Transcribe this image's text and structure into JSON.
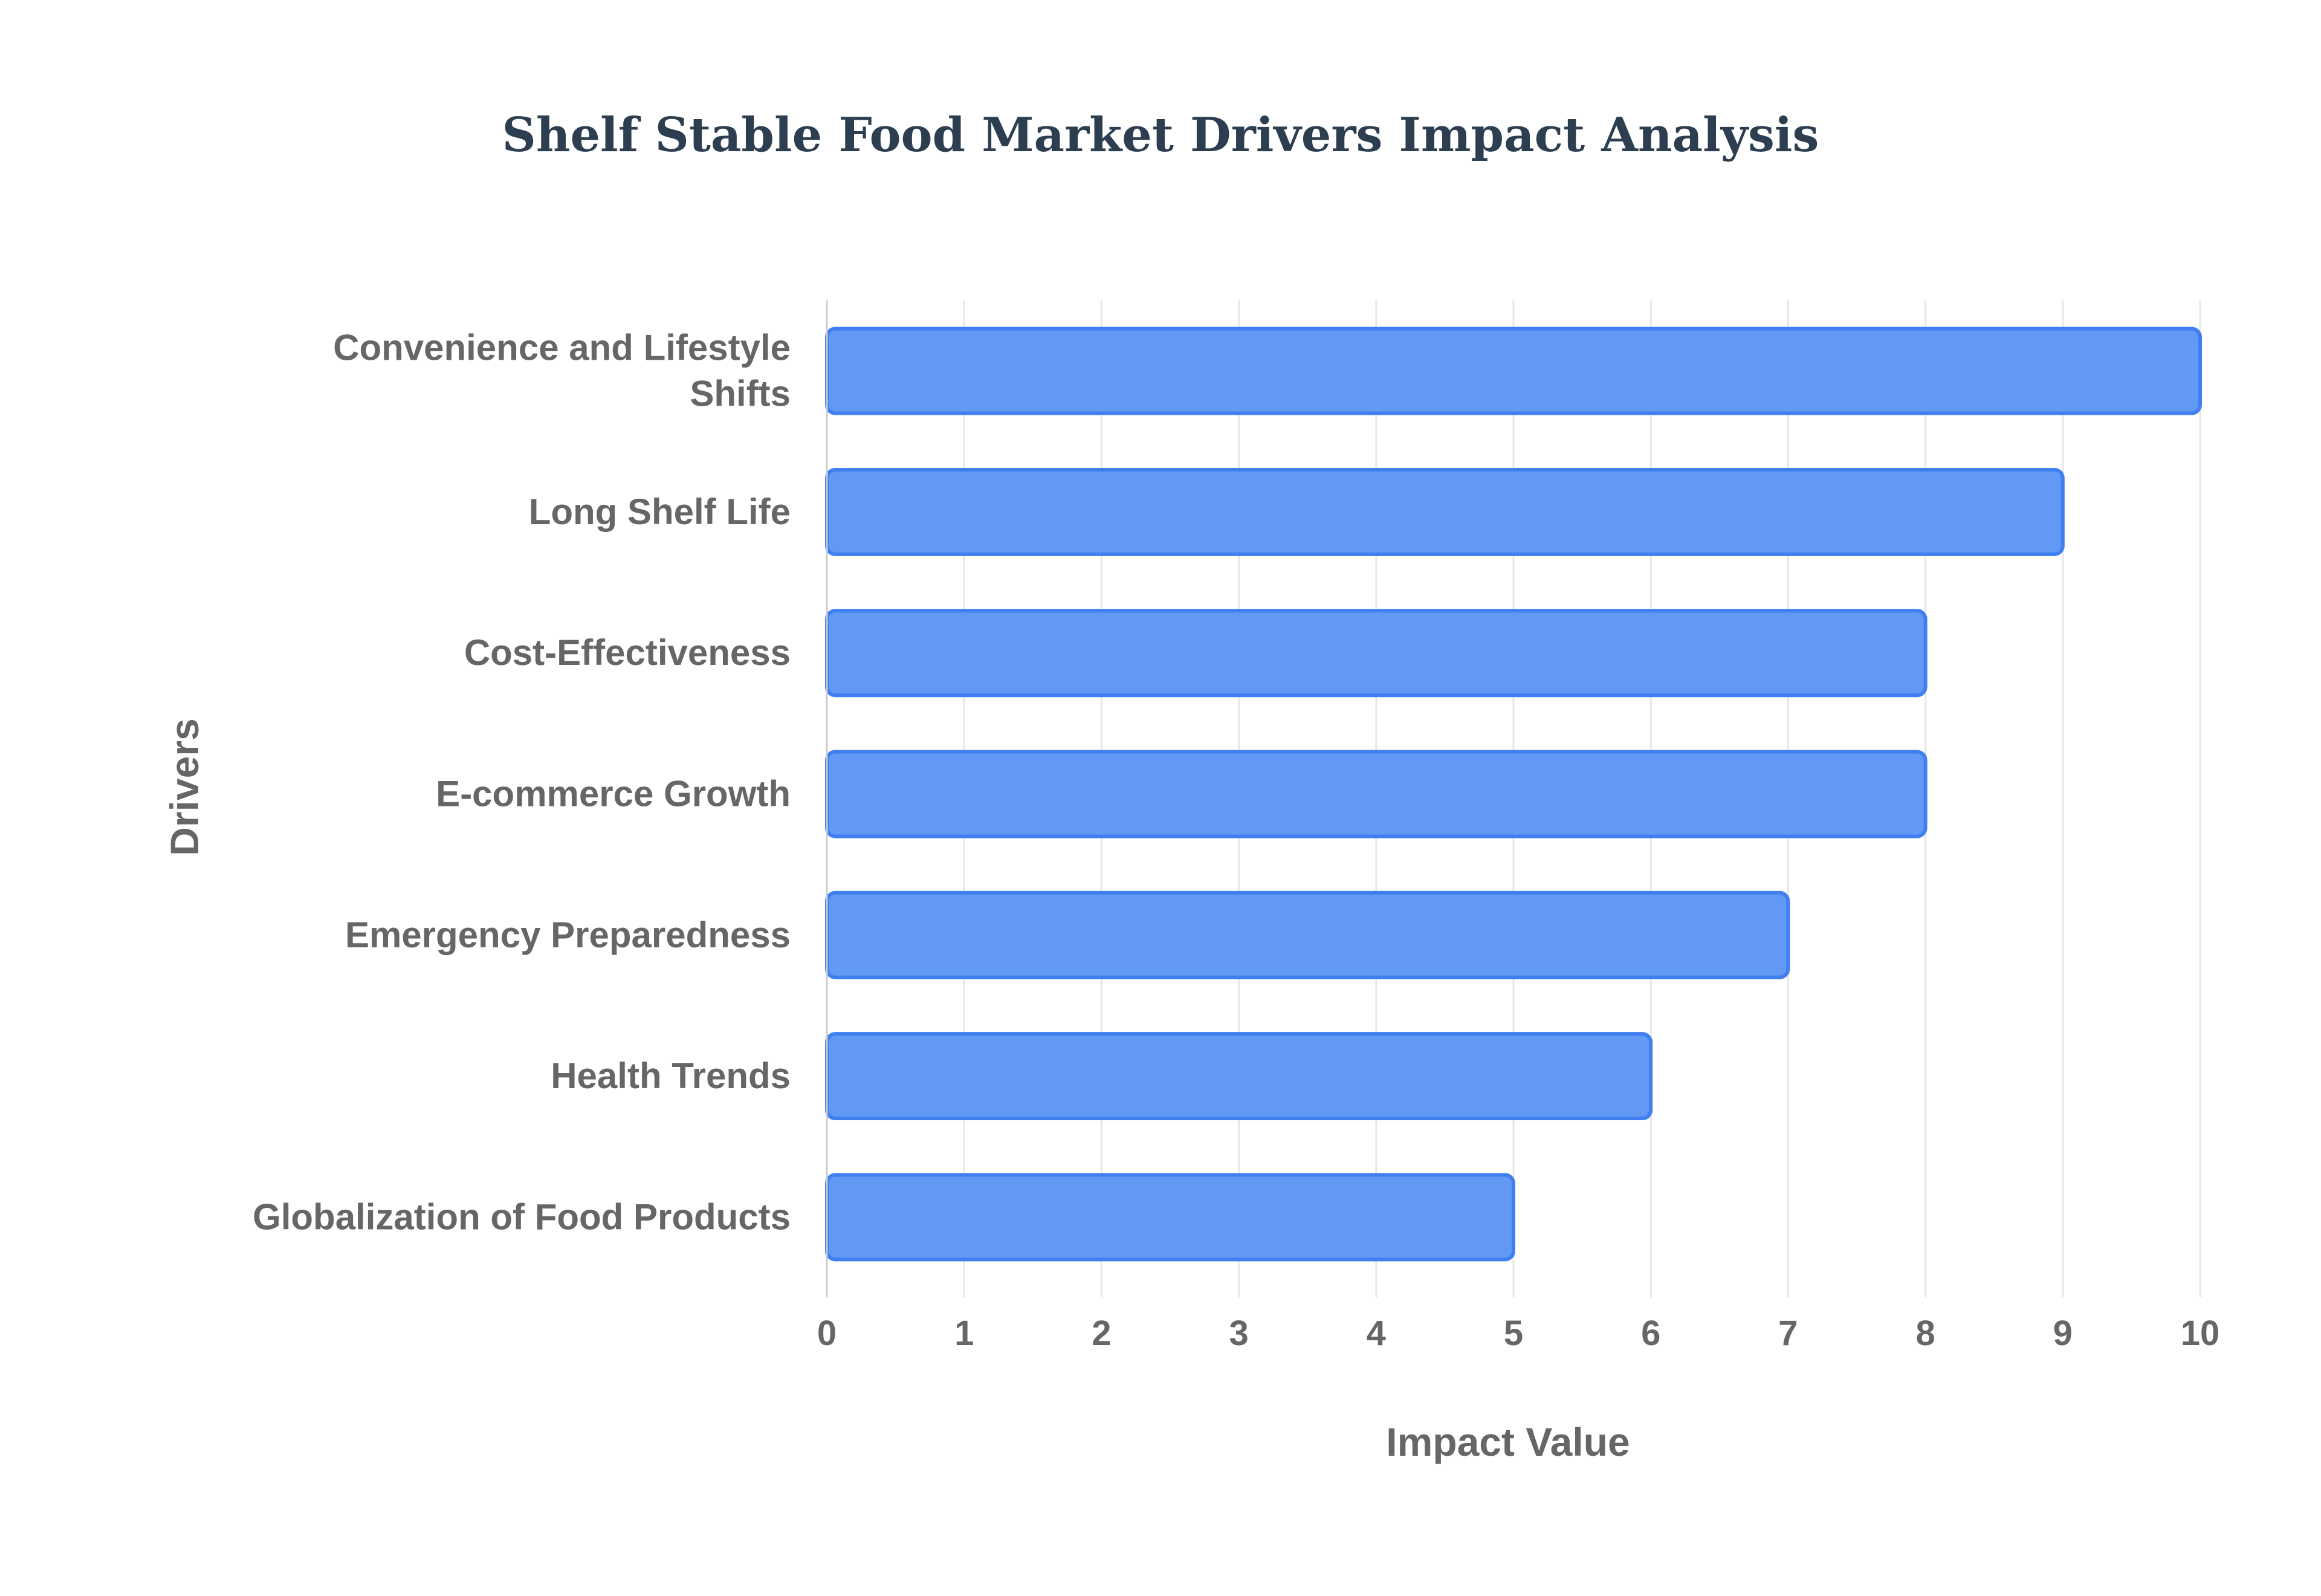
{
  "chart_data": {
    "type": "bar",
    "orientation": "horizontal",
    "title": "Shelf Stable Food Market Drivers Impact Analysis",
    "xlabel": "Impact Value",
    "ylabel": "Drivers",
    "xlim": [
      0,
      10
    ],
    "x_ticks": [
      0,
      1,
      2,
      3,
      4,
      5,
      6,
      7,
      8,
      9,
      10
    ],
    "grid": true,
    "legend": "none",
    "categories": [
      [
        "Convenience and Lifestyle",
        "Shifts"
      ],
      [
        "Long Shelf Life"
      ],
      [
        "Cost-Effectiveness"
      ],
      [
        "E-commerce Growth"
      ],
      [
        "Emergency Preparedness"
      ],
      [
        "Health Trends"
      ],
      [
        "Globalization of Food Products"
      ]
    ],
    "values": [
      10,
      9,
      8,
      8,
      7,
      6,
      5
    ],
    "colors": {
      "bar_fill": "#6199f4",
      "bar_stroke": "#3f7ff0",
      "title": "#2c3e50",
      "text": "#666666",
      "grid": "#e6e6e6"
    }
  }
}
